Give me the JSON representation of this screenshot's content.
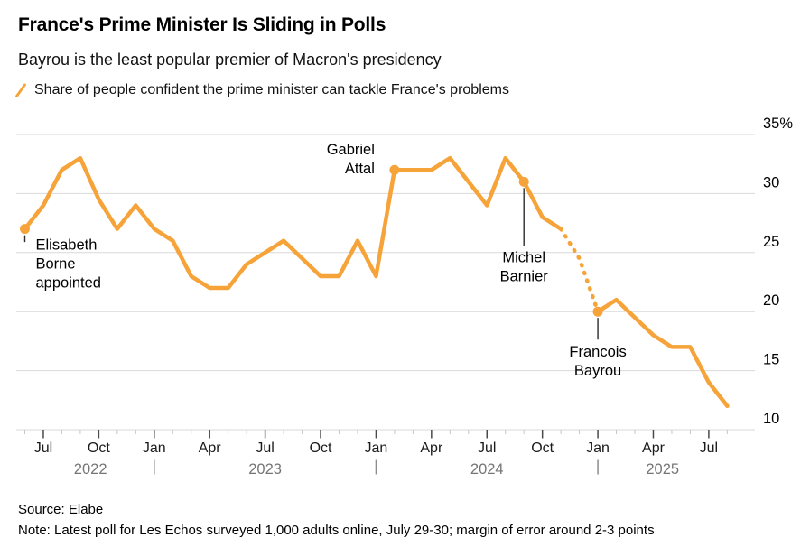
{
  "header": {
    "title": "France's Prime Minister Is Sliding in Polls",
    "subtitle": "Bayrou is the least popular premier of Macron's presidency"
  },
  "legend": {
    "label": "Share of people confident the prime minister can tackle France's problems"
  },
  "footer": {
    "source": "Source: Elabe",
    "note": "Note: Latest poll for Les Echos surveyed 1,000 adults online, July 29-30; margin of error around 2-3 points"
  },
  "chart_data": {
    "type": "line",
    "title": "France's Prime Minister Is Sliding in Polls",
    "subtitle": "Bayrou is the least popular premier of Macron's presidency",
    "series_label": "Share of people confident the prime minister can tackle France's problems",
    "unit": "%",
    "ylim": [
      10,
      35
    ],
    "grid": true,
    "legend_position": "top-left",
    "line_color": "#F6A339",
    "style": {
      "grid_color": "#D9D9D9",
      "minor_tick_color": "#C6C6C6",
      "major_tick_color": "#4A4A4A",
      "axis_text_color": "#000000",
      "month_label_color": "#1A1A1A",
      "year_label_color": "#757575",
      "annotation_color": "#000000",
      "connector_color": "#2B2B2B"
    },
    "yticks": [
      {
        "v": 35,
        "label": "35%"
      },
      {
        "v": 30,
        "label": "30"
      },
      {
        "v": 25,
        "label": "25"
      },
      {
        "v": 20,
        "label": "20"
      },
      {
        "v": 15,
        "label": "15"
      },
      {
        "v": 10,
        "label": "10"
      }
    ],
    "x_months": [
      "Jun 2022",
      "Jul 2022",
      "Aug 2022",
      "Sep 2022",
      "Oct 2022",
      "Nov 2022",
      "Dec 2022",
      "Jan 2023",
      "Feb 2023",
      "Mar 2023",
      "Apr 2023",
      "May 2023",
      "Jun 2023",
      "Jul 2023",
      "Aug 2023",
      "Sep 2023",
      "Oct 2023",
      "Nov 2023",
      "Dec 2023",
      "Jan 2024",
      "Feb 2024",
      "Mar 2024",
      "Apr 2024",
      "May 2024",
      "Jun 2024",
      "Jul 2024",
      "Aug 2024",
      "Sep 2024",
      "Oct 2024",
      "Nov 2024",
      "Dec 2024",
      "Jan 2025",
      "Feb 2025",
      "Mar 2025",
      "Apr 2025",
      "May 2025",
      "Jun 2025",
      "Jul 2025",
      "Aug 2025"
    ],
    "values": [
      27,
      29,
      32,
      33,
      29.5,
      27,
      29,
      27,
      26,
      23,
      22,
      22,
      24,
      25,
      26,
      24.5,
      23,
      23,
      26,
      23,
      32,
      32,
      32,
      33,
      31,
      29,
      33,
      31,
      28,
      27,
      24.5,
      20,
      21,
      19.5,
      18,
      17,
      17,
      14,
      12
    ],
    "dashed_from_index": 29,
    "dashed_to_index": 31,
    "xticks_major": [
      {
        "index": 1,
        "label": "Jul"
      },
      {
        "index": 4,
        "label": "Oct"
      },
      {
        "index": 7,
        "label": "Jan"
      },
      {
        "index": 10,
        "label": "Apr"
      },
      {
        "index": 13,
        "label": "Jul"
      },
      {
        "index": 16,
        "label": "Oct"
      },
      {
        "index": 19,
        "label": "Jan"
      },
      {
        "index": 22,
        "label": "Apr"
      },
      {
        "index": 25,
        "label": "Jul"
      },
      {
        "index": 28,
        "label": "Oct"
      },
      {
        "index": 31,
        "label": "Jan"
      },
      {
        "index": 34,
        "label": "Apr"
      },
      {
        "index": 37,
        "label": "Jul"
      }
    ],
    "year_labels": [
      {
        "label": "2022",
        "index": 3.55
      },
      {
        "label": "2023",
        "index": 13
      },
      {
        "label": "2024",
        "index": 25
      },
      {
        "label": "2025",
        "index": 34.5
      }
    ],
    "year_separators": [
      {
        "index": 7
      },
      {
        "index": 19
      },
      {
        "index": 31
      }
    ],
    "markers": [
      {
        "label": "Elisabeth Borne appointed",
        "month": "Jun 2022",
        "index": 0,
        "value": 27,
        "lines": [
          "Elisabeth",
          "Borne",
          "appointed"
        ],
        "align": "left",
        "tick": true,
        "text_dx": 12,
        "baselines_dy": [
          23,
          44,
          65
        ]
      },
      {
        "label": "Gabriel Attal",
        "month": "Feb 2024",
        "index": 20,
        "value": 32,
        "lines": [
          "Gabriel",
          "Attal"
        ],
        "align": "right",
        "tick": false,
        "text_dx": -22,
        "baselines_dy": [
          -17,
          4
        ]
      },
      {
        "label": "Michel Barnier",
        "month": "Sep 2024",
        "index": 27,
        "value": 31,
        "lines": [
          "Michel",
          "Barnier"
        ],
        "align": "center",
        "tick": false,
        "connector": [
          7,
          71
        ],
        "text_dx": 0,
        "baselines_dy": [
          89,
          110
        ]
      },
      {
        "label": "Francois Bayrou",
        "month": "Jan 2025",
        "index": 31,
        "value": 20,
        "lines": [
          "Francois",
          "Bayrou"
        ],
        "align": "center",
        "tick": false,
        "connector": [
          7,
          31
        ],
        "text_dx": 0,
        "baselines_dy": [
          50,
          71
        ]
      }
    ]
  }
}
